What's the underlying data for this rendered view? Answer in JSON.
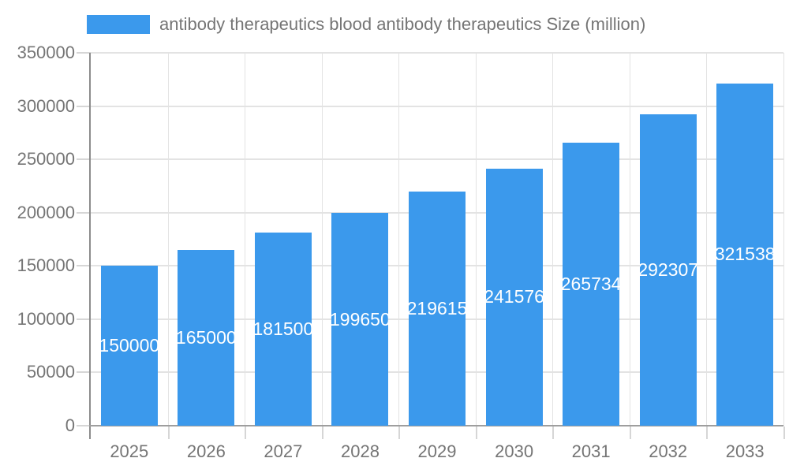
{
  "legend": {
    "label": "antibody therapeutics blood antibody therapeutics Size (million)",
    "swatch_color": "#3B99EC"
  },
  "chart_data": {
    "type": "bar",
    "title": "",
    "xlabel": "",
    "ylabel": "",
    "legend_entries": [
      "antibody therapeutics blood antibody therapeutics Size (million)"
    ],
    "legend_position": "top-left",
    "grid": true,
    "categories": [
      "2025",
      "2026",
      "2027",
      "2028",
      "2029",
      "2030",
      "2031",
      "2032",
      "2033"
    ],
    "values": [
      150000,
      165000,
      181500,
      199650,
      219615,
      241576,
      265734,
      292307,
      321538
    ],
    "bar_labels": [
      "150000",
      "165000",
      "181500",
      "199650",
      "219615",
      "241576",
      "265734",
      "292307",
      "321538"
    ],
    "ylim": [
      0,
      350000
    ],
    "y_ticks": [
      0,
      50000,
      100000,
      150000,
      200000,
      250000,
      300000,
      350000
    ],
    "colors": {
      "bar": "#3B99EC",
      "bar_label_text": "#ffffff",
      "axis_text": "#757575",
      "grid_line": "#e3e3e3",
      "minor_tick": "#d6d6d6",
      "x_axis_line": "#9e9e9e",
      "y_axis_line": "#8c8c8c"
    }
  }
}
